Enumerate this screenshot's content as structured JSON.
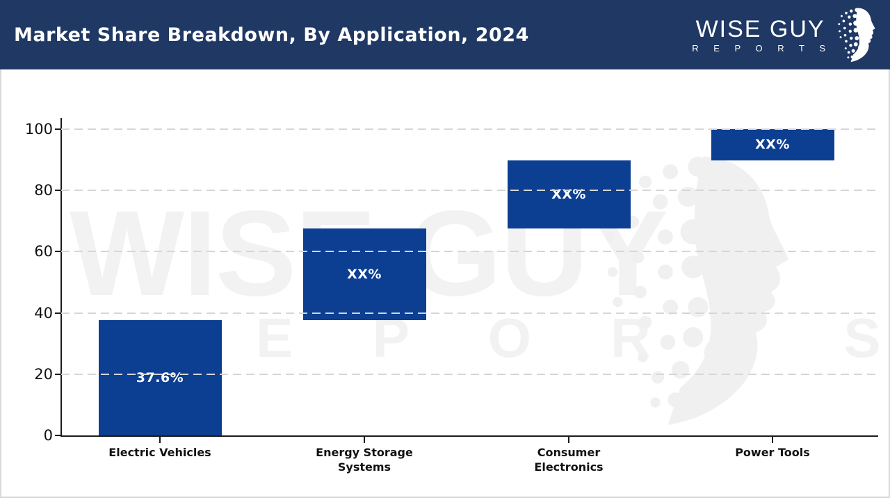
{
  "header": {
    "title": "Market Share Breakdown, By Application, 2024",
    "logo": {
      "line1": "WISE GUY",
      "line2": "R E P O R T S",
      "head_icon": "dotted-head-profile-icon"
    }
  },
  "watermark": {
    "line1": "WISE GUY",
    "line2": "R E P O R T S"
  },
  "colors": {
    "header_bg": "#1f3864",
    "bar_fill": "#0c3e92",
    "bar_label": "#ffffff",
    "gridline": "#d6d6d6",
    "axis": "#1a1a1a",
    "watermark": "#f2f2f2",
    "page_border": "#d9d9d9"
  },
  "chart_data": {
    "type": "bar",
    "variant": "waterfall-floating-segments",
    "title": "Market Share Breakdown, By Application, 2024",
    "categories": [
      "Electric Vehicles",
      "Energy Storage\nSystems",
      "Consumer\nElectronics",
      "Power Tools"
    ],
    "series": [
      {
        "name": "Market Share (%)",
        "segments": [
          {
            "category": "Electric Vehicles",
            "start": 0,
            "end": 37.6,
            "label": "37.6%"
          },
          {
            "category": "Energy Storage Systems",
            "start": 37.6,
            "end": 67.6,
            "label": "XX%"
          },
          {
            "category": "Consumer Electronics",
            "start": 67.6,
            "end": 89.8,
            "label": "XX%"
          },
          {
            "category": "Power Tools",
            "start": 89.8,
            "end": 100,
            "label": "XX%"
          }
        ]
      }
    ],
    "xlabel": "",
    "ylabel": "",
    "ylim": [
      0,
      100
    ],
    "yticks": [
      0,
      20,
      40,
      60,
      80,
      100
    ],
    "grid": "horizontal-dashed",
    "legend": "none"
  }
}
